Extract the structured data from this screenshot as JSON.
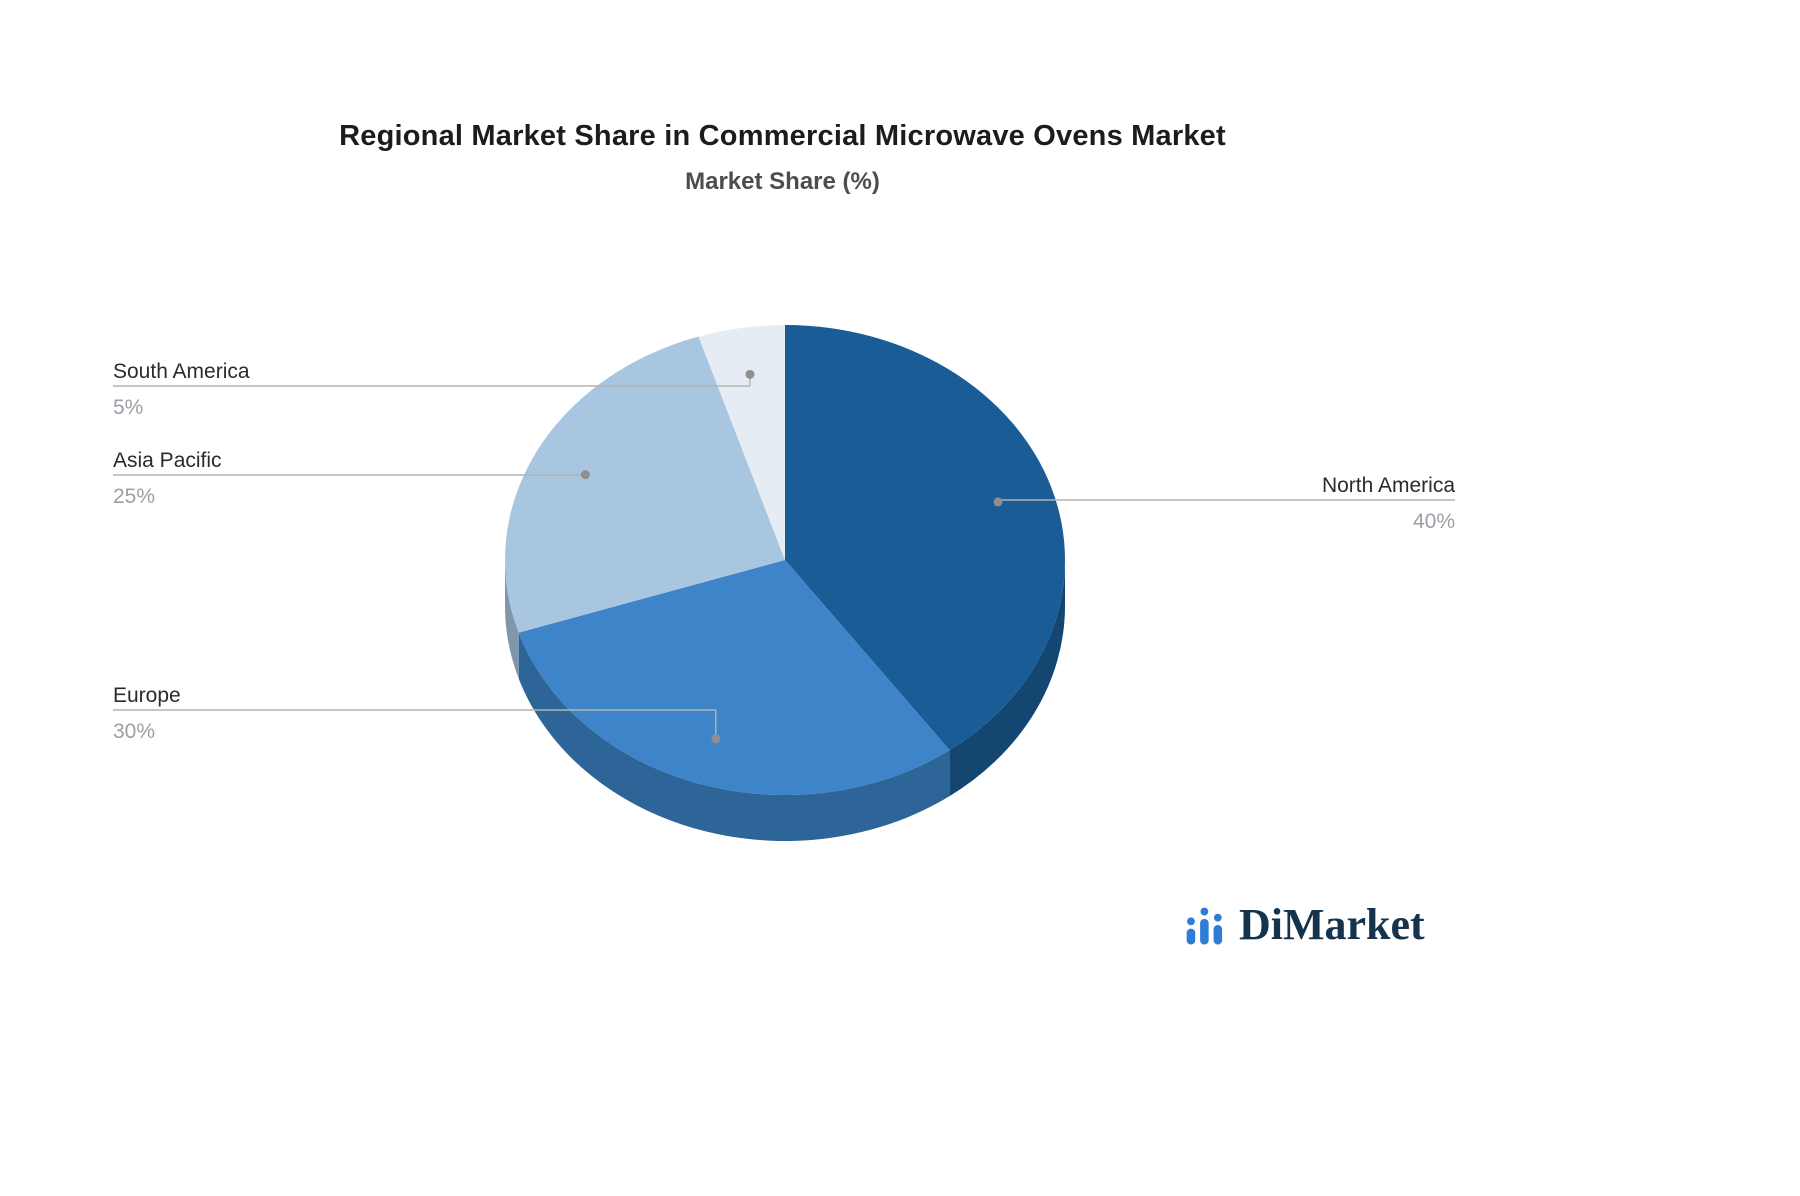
{
  "header": {
    "title": "Regional Market Share in Commercial Microwave Ovens Market",
    "subtitle": "Market Share (%)"
  },
  "chart_data": {
    "type": "pie",
    "style": "3d",
    "title": "Regional Market Share in Commercial Microwave Ovens Market",
    "subtitle": "Market Share (%)",
    "unit": "%",
    "start_angle_deg": 0,
    "direction": "clockwise",
    "legend_position": "callout-labels",
    "slices": [
      {
        "label": "North America",
        "value": 40,
        "pct_label": "40%",
        "color": "#1a5c96"
      },
      {
        "label": "Europe",
        "value": 30,
        "pct_label": "30%",
        "color": "#3d85c8"
      },
      {
        "label": "Asia Pacific",
        "value": 25,
        "pct_label": "25%",
        "color": "#a9c6e1"
      },
      {
        "label": "South America",
        "value": 5,
        "pct_label": "5%",
        "color": "#e6ecf4"
      }
    ]
  },
  "branding": {
    "logo_text": "DiMarket",
    "logo_icon": "bar-chart-icon",
    "logo_text_color": "#16334e",
    "logo_icon_color": "#2e7cd6"
  }
}
